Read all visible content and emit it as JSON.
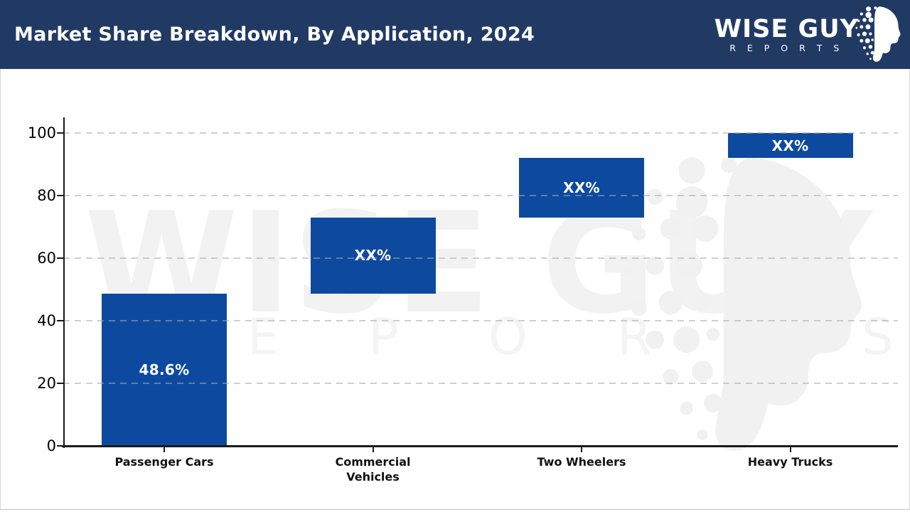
{
  "header": {
    "title": "Market Share Breakdown, By Application, 2024",
    "logo": {
      "wordmark": "WISE GUY",
      "reports": "R E P O R T S"
    }
  },
  "watermark": {
    "wordmark": "WISE GUY",
    "reports": "R E P O R T S"
  },
  "chart_data": {
    "type": "bar",
    "subtype": "waterfall",
    "title": "Market Share Breakdown, By Application, 2024",
    "categories": [
      "Passenger Cars",
      "Commercial\nVehicles",
      "Two Wheelers",
      "Heavy Trucks"
    ],
    "segments": [
      {
        "category": "Passenger Cars",
        "start": 0,
        "end": 48.6,
        "label": "48.6%"
      },
      {
        "category": "Commercial Vehicles",
        "start": 48.6,
        "end": 73,
        "label": "XX%"
      },
      {
        "category": "Two Wheelers",
        "start": 73,
        "end": 92,
        "label": "XX%"
      },
      {
        "category": "Heavy Trucks",
        "start": 92,
        "end": 100,
        "label": "XX%"
      }
    ],
    "ylim": [
      0,
      100
    ],
    "yticks": [
      0,
      20,
      40,
      60,
      80,
      100
    ],
    "grid": true,
    "legend": false,
    "bar_color": "#0d4a9f",
    "bar_label_color": "#ffffff",
    "axis_color": "#1a1a1a",
    "gridline_color": "#c8c8c8",
    "header_color": "#203a64"
  }
}
